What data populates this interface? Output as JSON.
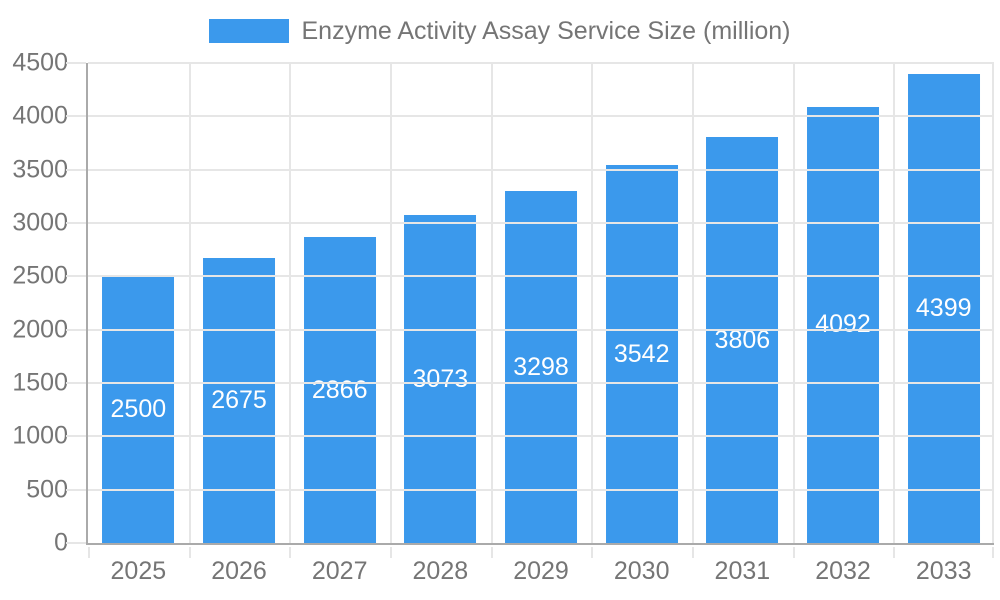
{
  "legend": {
    "label": "Enzyme Activity Assay Service Size (million)"
  },
  "chart_data": {
    "type": "bar",
    "categories": [
      "2025",
      "2026",
      "2027",
      "2028",
      "2029",
      "2030",
      "2031",
      "2032",
      "2033"
    ],
    "values": [
      2500,
      2675,
      2866,
      3073,
      3298,
      3542,
      3806,
      4092,
      4399
    ],
    "title": "Enzyme Activity Assay Service Size (million)",
    "xlabel": "",
    "ylabel": "",
    "ylim": [
      0,
      4500
    ],
    "ytick_step": 500,
    "grid": true,
    "legend_position": "top",
    "value_labels": "centered-inside-bars",
    "colors": {
      "bar": "#3b99ec",
      "value_label": "#ffffff",
      "axis_text": "#757575",
      "grid_line": "#e6e6e6",
      "axis_line": "#aaaaaa"
    }
  }
}
